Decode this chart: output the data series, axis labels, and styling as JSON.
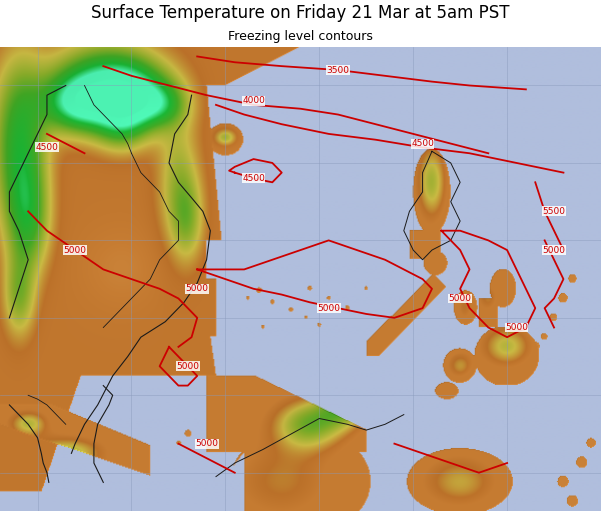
{
  "title": "Surface Temperature on Friday 21 Mar at 5am PST",
  "subtitle": "Freezing level contours",
  "title_fontsize": 12,
  "subtitle_fontsize": 9,
  "fig_width": 6.01,
  "fig_height": 5.14,
  "dpi": 100,
  "ocean_color": "#b0bedd",
  "land_base_color": [
    0.78,
    0.5,
    0.12
  ],
  "header_bg": "#f5f5f5",
  "contour_color": "#cc0000",
  "contour_lw": 1.3,
  "grid_color": "#8899bb",
  "grid_alpha": 0.6,
  "grid_lw": 0.5,
  "lon_min": 98,
  "lon_max": 130,
  "lat_min": 0,
  "lat_max": 24,
  "grid_lons": [
    100,
    105,
    110,
    115,
    120,
    125,
    130
  ],
  "grid_lats": [
    2,
    6,
    10,
    14,
    18,
    22
  ]
}
